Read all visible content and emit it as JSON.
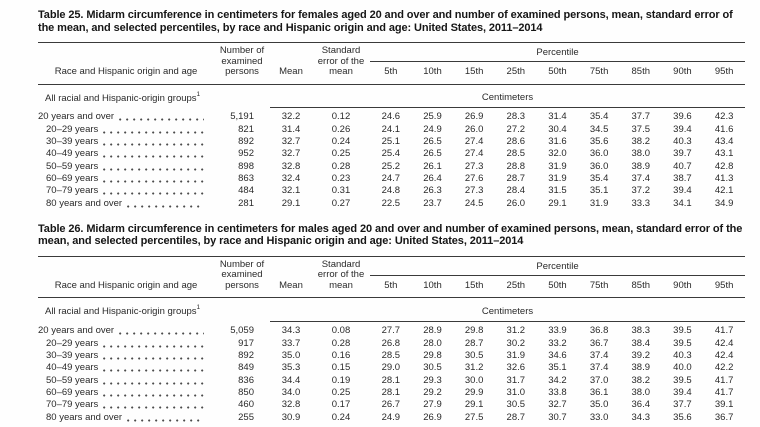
{
  "columns": {
    "label": "Race and Hispanic origin and age",
    "n": "Number of examined persons",
    "mean": "Mean",
    "sem": "Standard error of the mean",
    "percentile_group": "Percentile",
    "percentiles": [
      "5th",
      "10th",
      "15th",
      "25th",
      "50th",
      "75th",
      "85th",
      "90th",
      "95th"
    ],
    "unit": "Centimeters"
  },
  "tables": [
    {
      "title": "Table 25. Midarm circumference in centimeters for females aged 20 and over and number of examined persons, mean, standard error of the mean, and selected percentiles, by race and Hispanic origin and age: United States, 2011–2014",
      "group_label": "All racial and Hispanic-origin groups",
      "group_label_footnote": "1",
      "rows": [
        {
          "label": "20 years and over",
          "indent": false,
          "n": "5,191",
          "mean": "32.2",
          "sem": "0.12",
          "percentiles": [
            "24.6",
            "25.9",
            "26.9",
            "28.3",
            "31.4",
            "35.4",
            "37.7",
            "39.6",
            "42.3"
          ]
        },
        {
          "label": "20–29 years",
          "indent": true,
          "n": "821",
          "mean": "31.4",
          "sem": "0.26",
          "percentiles": [
            "24.1",
            "24.9",
            "26.0",
            "27.2",
            "30.4",
            "34.5",
            "37.5",
            "39.4",
            "41.6"
          ]
        },
        {
          "label": "30–39 years",
          "indent": true,
          "n": "892",
          "mean": "32.7",
          "sem": "0.24",
          "percentiles": [
            "25.1",
            "26.5",
            "27.4",
            "28.6",
            "31.6",
            "35.6",
            "38.2",
            "40.3",
            "43.4"
          ]
        },
        {
          "label": "40–49 years",
          "indent": true,
          "n": "952",
          "mean": "32.7",
          "sem": "0.25",
          "percentiles": [
            "25.4",
            "26.5",
            "27.4",
            "28.5",
            "32.0",
            "36.0",
            "38.0",
            "39.7",
            "43.1"
          ]
        },
        {
          "label": "50–59 years",
          "indent": true,
          "n": "898",
          "mean": "32.8",
          "sem": "0.28",
          "percentiles": [
            "25.2",
            "26.1",
            "27.3",
            "28.8",
            "31.9",
            "36.0",
            "38.9",
            "40.7",
            "42.8"
          ]
        },
        {
          "label": "60–69 years",
          "indent": true,
          "n": "863",
          "mean": "32.4",
          "sem": "0.23",
          "percentiles": [
            "24.7",
            "26.4",
            "27.6",
            "28.7",
            "31.9",
            "35.4",
            "37.4",
            "38.7",
            "41.3"
          ]
        },
        {
          "label": "70–79 years",
          "indent": true,
          "n": "484",
          "mean": "32.1",
          "sem": "0.31",
          "percentiles": [
            "24.8",
            "26.3",
            "27.3",
            "28.4",
            "31.5",
            "35.1",
            "37.2",
            "39.4",
            "42.1"
          ]
        },
        {
          "label": "80 years and over",
          "indent": true,
          "n": "281",
          "mean": "29.1",
          "sem": "0.27",
          "percentiles": [
            "22.5",
            "23.7",
            "24.5",
            "26.0",
            "29.1",
            "31.9",
            "33.3",
            "34.1",
            "34.9"
          ]
        }
      ]
    },
    {
      "title": "Table 26. Midarm circumference in centimeters for males aged 20 and over and number of examined persons, mean, standard error of the mean, and selected percentiles, by race and Hispanic origin and age: United States, 2011–2014",
      "group_label": "All racial and Hispanic-origin groups",
      "group_label_footnote": "1",
      "rows": [
        {
          "label": "20 years and over",
          "indent": false,
          "n": "5,059",
          "mean": "34.3",
          "sem": "0.08",
          "percentiles": [
            "27.7",
            "28.9",
            "29.8",
            "31.2",
            "33.9",
            "36.8",
            "38.3",
            "39.5",
            "41.7"
          ]
        },
        {
          "label": "20–29 years",
          "indent": true,
          "n": "917",
          "mean": "33.7",
          "sem": "0.28",
          "percentiles": [
            "26.8",
            "28.0",
            "28.7",
            "30.2",
            "33.2",
            "36.7",
            "38.4",
            "39.5",
            "42.4"
          ]
        },
        {
          "label": "30–39 years",
          "indent": true,
          "n": "892",
          "mean": "35.0",
          "sem": "0.16",
          "percentiles": [
            "28.5",
            "29.8",
            "30.5",
            "31.9",
            "34.6",
            "37.4",
            "39.2",
            "40.3",
            "42.4"
          ]
        },
        {
          "label": "40–49 years",
          "indent": true,
          "n": "849",
          "mean": "35.3",
          "sem": "0.15",
          "percentiles": [
            "29.0",
            "30.5",
            "31.2",
            "32.6",
            "35.1",
            "37.4",
            "38.9",
            "40.0",
            "42.2"
          ]
        },
        {
          "label": "50–59 years",
          "indent": true,
          "n": "836",
          "mean": "34.4",
          "sem": "0.19",
          "percentiles": [
            "28.1",
            "29.3",
            "30.0",
            "31.7",
            "34.2",
            "37.0",
            "38.2",
            "39.5",
            "41.7"
          ]
        },
        {
          "label": "60–69 years",
          "indent": true,
          "n": "850",
          "mean": "34.0",
          "sem": "0.25",
          "percentiles": [
            "28.1",
            "29.2",
            "29.9",
            "31.0",
            "33.8",
            "36.1",
            "38.0",
            "39.4",
            "41.7"
          ]
        },
        {
          "label": "70–79 years",
          "indent": true,
          "n": "460",
          "mean": "32.8",
          "sem": "0.17",
          "percentiles": [
            "26.7",
            "27.9",
            "29.1",
            "30.5",
            "32.7",
            "35.0",
            "36.4",
            "37.7",
            "39.1"
          ]
        },
        {
          "label": "80 years and over",
          "indent": true,
          "n": "255",
          "mean": "30.9",
          "sem": "0.24",
          "percentiles": [
            "24.9",
            "26.9",
            "27.5",
            "28.7",
            "30.7",
            "33.0",
            "34.3",
            "35.6",
            "36.7"
          ]
        }
      ]
    }
  ]
}
